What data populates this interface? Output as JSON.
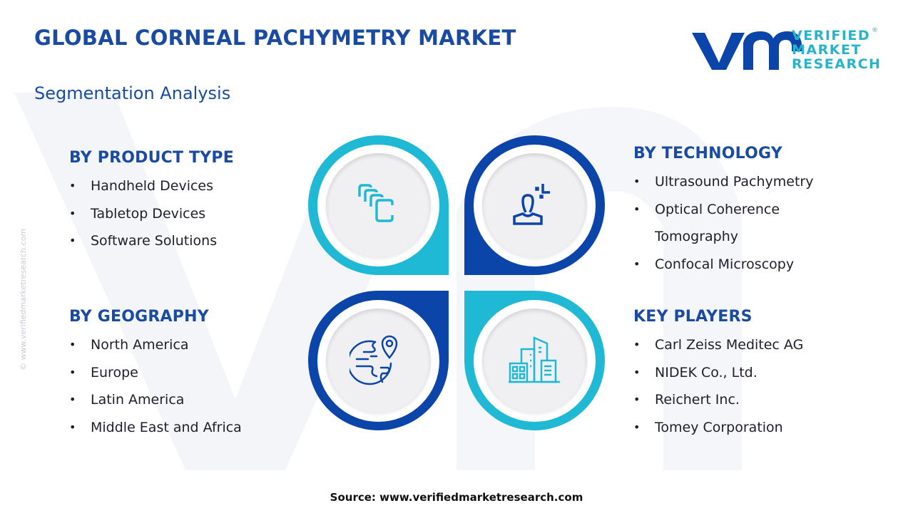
{
  "header": {
    "title": "GLOBAL CORNEAL PACHYMETRY MARKET",
    "subtitle": "Segmentation Analysis"
  },
  "logo": {
    "line1": "VERIFIED",
    "line2": "MARKET",
    "line3": "RESEARCH",
    "registered": "®"
  },
  "side_text": "© www.verifiedmarketresearch.com",
  "colors": {
    "primary": "#1a4ba3",
    "cyan": "#1fb9d6",
    "dark_blue": "#0b45aa"
  },
  "segments": {
    "product_type": {
      "heading": "BY PRODUCT TYPE",
      "icon": "stacked-cards-icon",
      "items": [
        "Handheld Devices",
        "Tabletop Devices",
        "Software Solutions"
      ]
    },
    "technology": {
      "heading": "BY TECHNOLOGY",
      "icon": "user-focus-icon",
      "items": [
        "Ultrasound Pachymetry",
        "Optical Coherence Tomography",
        "Confocal Microscopy"
      ]
    },
    "geography": {
      "heading": "BY GEOGRAPHY",
      "icon": "globe-pin-icon",
      "items": [
        "North America",
        "Europe",
        "Latin America",
        "Middle East and Africa"
      ]
    },
    "key_players": {
      "heading": "KEY PLAYERS",
      "icon": "buildings-icon",
      "items": [
        "Carl Zeiss Meditec AG",
        "NIDEK Co., Ltd.",
        "Reichert Inc.",
        "Tomey Corporation"
      ]
    }
  },
  "footer": {
    "source": "Source: www.verifiedmarketresearch.com"
  }
}
